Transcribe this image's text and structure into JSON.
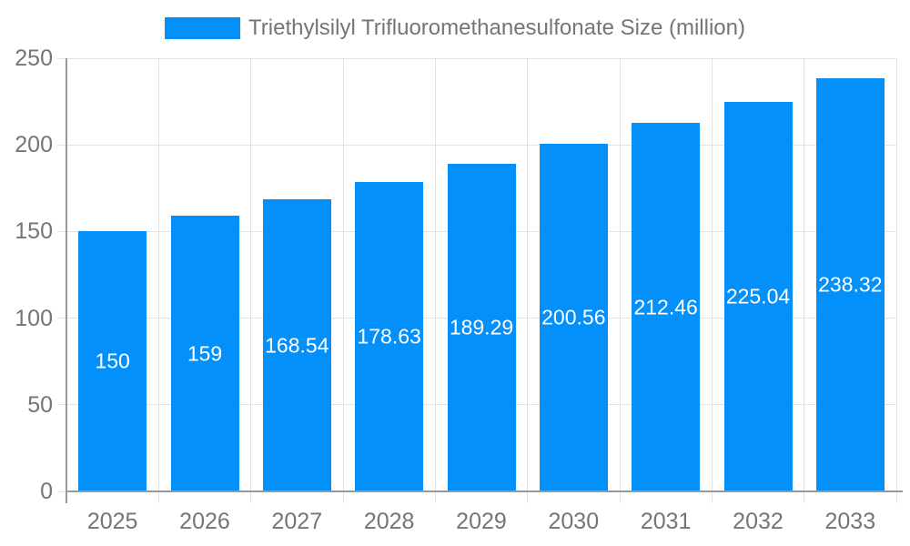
{
  "chart_data": {
    "type": "bar",
    "title": "Triethylsilyl Trifluoromethanesulfonate Size (million)",
    "categories": [
      "2025",
      "2026",
      "2027",
      "2028",
      "2029",
      "2030",
      "2031",
      "2032",
      "2033"
    ],
    "values": [
      150,
      159,
      168.54,
      178.63,
      189.29,
      200.56,
      212.46,
      225.04,
      238.32
    ],
    "value_labels": [
      "150",
      "159",
      "168.54",
      "178.63",
      "189.29",
      "200.56",
      "212.46",
      "225.04",
      "238.32"
    ],
    "ylim": [
      0,
      250
    ],
    "yticks": [
      0,
      50,
      100,
      150,
      200,
      250
    ],
    "grid": "horizontal and vertical boundaries",
    "legend_position": "top-center",
    "colors": {
      "bar": "#0490fa",
      "bar_label": "#ffffff",
      "axis": "#999999",
      "gridline": "#e2e2e2",
      "tick_text": "#757575",
      "legend_text": "#757575",
      "background": "#ffffff"
    }
  }
}
